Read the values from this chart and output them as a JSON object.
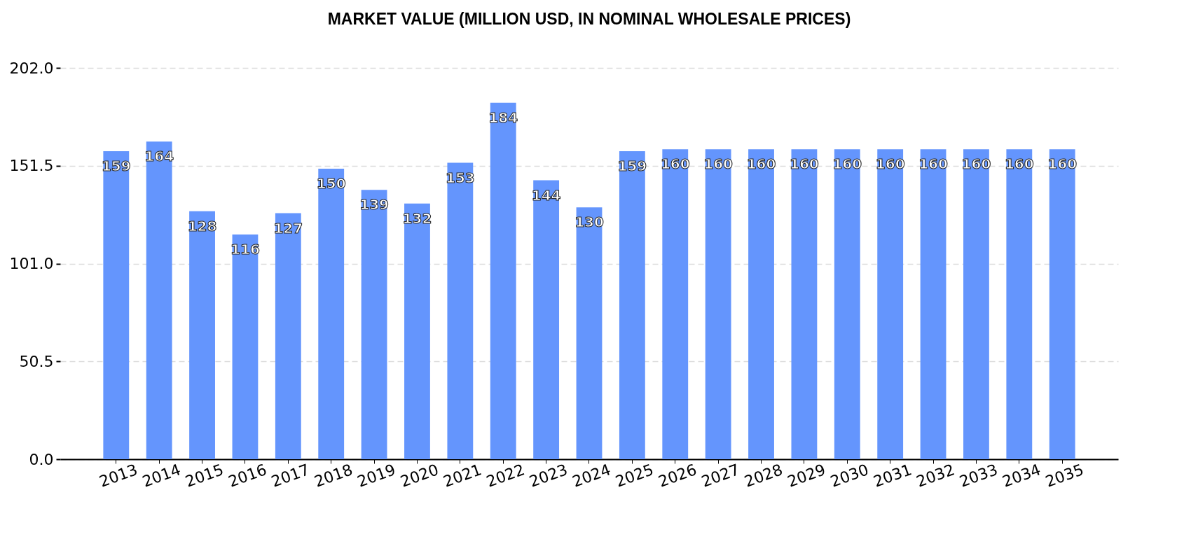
{
  "chart_data": {
    "type": "bar",
    "title": "MARKET VALUE (MILLION USD, IN NOMINAL WHOLESALE PRICES)",
    "categories": [
      "2013",
      "2014",
      "2015",
      "2016",
      "2017",
      "2018",
      "2019",
      "2020",
      "2021",
      "2022",
      "2023",
      "2024",
      "2025",
      "2026",
      "2027",
      "2028",
      "2029",
      "2030",
      "2031",
      "2032",
      "2033",
      "2034",
      "2035"
    ],
    "values": [
      159,
      164,
      128,
      116,
      127,
      150,
      139,
      132,
      153,
      184,
      144,
      130,
      159,
      160,
      160,
      160,
      160,
      160,
      160,
      160,
      160,
      160,
      160
    ],
    "color": "#6495fd",
    "ylim": [
      0,
      202
    ],
    "yticks": [
      {
        "value": 0,
        "label": "0.0"
      },
      50.5,
      {
        "value": 101,
        "label": "101.0"
      },
      151.5,
      {
        "value": 202,
        "label": "202.0"
      }
    ],
    "grid": "y",
    "data_labels": true
  }
}
